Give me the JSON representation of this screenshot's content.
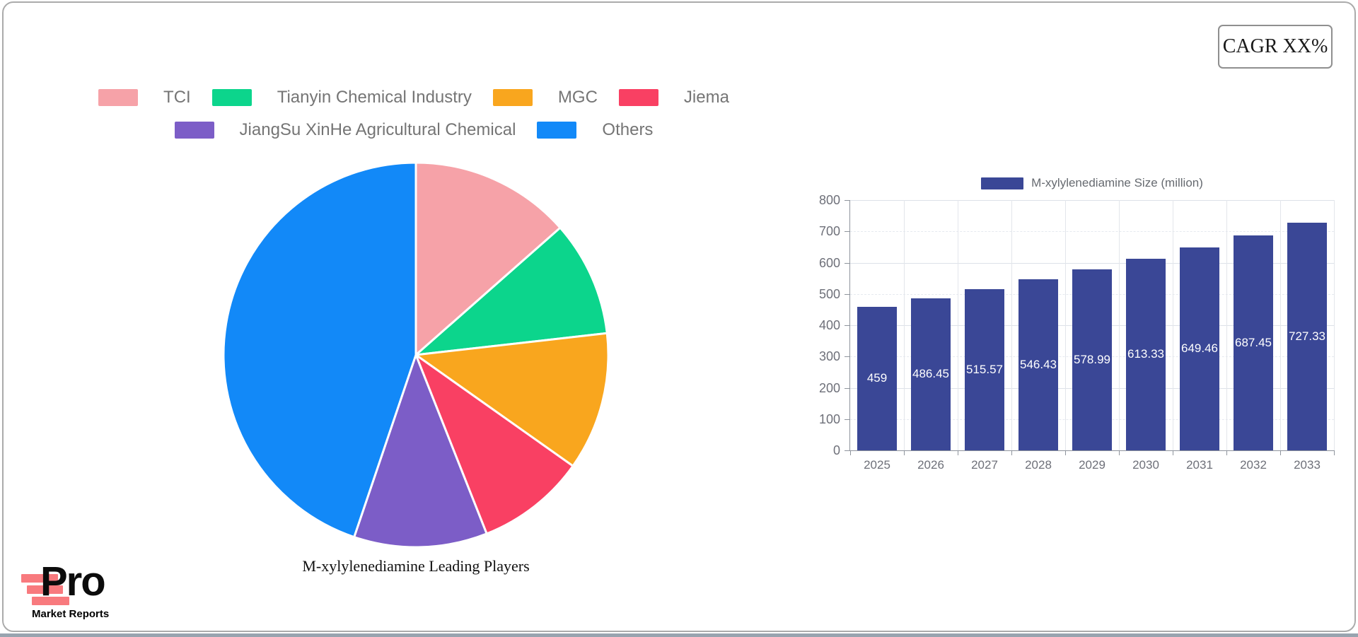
{
  "header": {
    "cagr_badge": "CAGR XX%"
  },
  "logo": {
    "name": "Pro",
    "tagline": "Market Reports",
    "mark_color": "#F87A7E"
  },
  "chart_data": [
    {
      "type": "pie",
      "title": "M-xylylenediamine Leading Players",
      "legend_position": "top",
      "unit": "% (estimated from slice angles)",
      "slices": [
        {
          "label": "TCI",
          "value": 13.5,
          "color": "#F6A2A8"
        },
        {
          "label": "Tianyin Chemical Industry",
          "value": 9.7,
          "color": "#0CD58C"
        },
        {
          "label": "MGC",
          "value": 11.6,
          "color": "#F9A61E"
        },
        {
          "label": "Jiema",
          "value": 9.2,
          "color": "#F94063"
        },
        {
          "label": "JiangSu XinHe Agricultural Chemical",
          "value": 11.2,
          "color": "#7C5DC7"
        },
        {
          "label": "Others",
          "value": 44.8,
          "color": "#1289F8"
        }
      ]
    },
    {
      "type": "bar",
      "legend_label": "M-xylylenediamine Size (million)",
      "bar_color": "#3A4796",
      "categories": [
        "2025",
        "2026",
        "2027",
        "2028",
        "2029",
        "2030",
        "2031",
        "2032",
        "2033"
      ],
      "values": [
        459,
        486.45,
        515.57,
        546.43,
        578.99,
        613.33,
        649.46,
        687.45,
        727.33
      ],
      "value_labels": [
        "459",
        "486.45",
        "515.57",
        "546.43",
        "578.99",
        "613.33",
        "649.46",
        "687.45",
        "727.33"
      ],
      "xlabel": "",
      "ylabel": "",
      "ylim": [
        0,
        800
      ],
      "ytick_step": 100,
      "grid": true,
      "legend_position": "top"
    }
  ]
}
